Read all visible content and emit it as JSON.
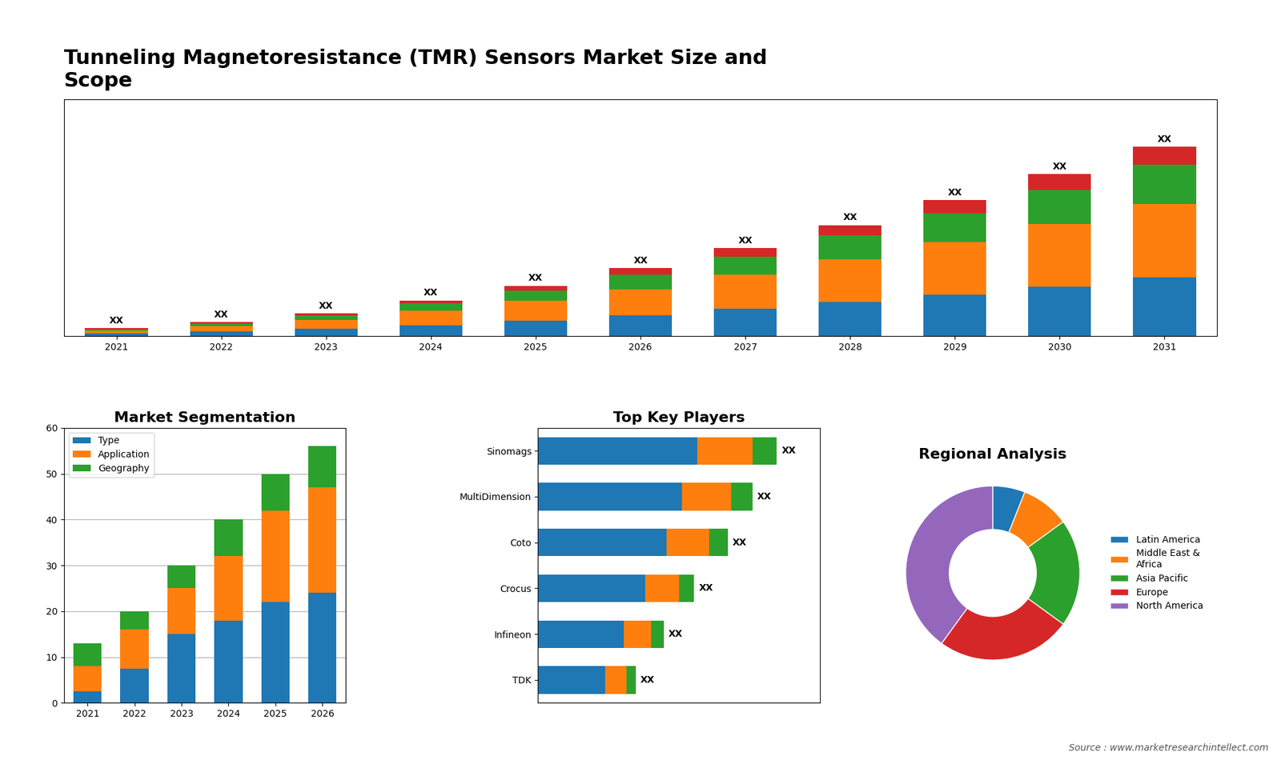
{
  "chart_data": [
    {
      "type": "bar",
      "title": "Tunneling Magnetoresistance (TMR) Sensors Market Size and\nScope",
      "stacked": true,
      "tick_labels": "x",
      "categories": [
        "2021",
        "2022",
        "2023",
        "2024",
        "2025",
        "2026",
        "2027",
        "2028",
        "2029",
        "2030",
        "2031"
      ],
      "series": [
        {
          "values": [
            1.0,
            1.8,
            2.8,
            4.2,
            6.0,
            8.0,
            10.5,
            13.0,
            16.0,
            19.0,
            22.5
          ]
        },
        {
          "values": [
            1.2,
            2.2,
            3.5,
            5.5,
            7.5,
            10.0,
            13.0,
            16.5,
            20.0,
            24.0,
            28.0
          ]
        },
        {
          "values": [
            0.5,
            1.0,
            1.7,
            2.8,
            4.0,
            5.5,
            7.0,
            9.0,
            11.0,
            13.0,
            15.0
          ]
        },
        {
          "values": [
            0.3,
            0.5,
            0.8,
            1.2,
            1.8,
            2.5,
            3.2,
            4.0,
            5.0,
            6.0,
            7.0
          ]
        }
      ],
      "ylim": [
        0,
        90.625
      ],
      "yticks": [],
      "annotations": [
        "XX",
        "XX",
        "XX",
        "XX",
        "XX",
        "XX",
        "XX",
        "XX",
        "XX",
        "XX",
        "XX"
      ]
    },
    {
      "type": "bar",
      "title": "Market Segmentation",
      "stacked": true,
      "categories": [
        "2021",
        "2022",
        "2023",
        "2024",
        "2025",
        "2026"
      ],
      "series": [
        {
          "name": "Type",
          "values": [
            2.5,
            7.5,
            15.0,
            18.0,
            22.0,
            24.0
          ]
        },
        {
          "name": "Application",
          "values": [
            5.5,
            8.5,
            10.0,
            14.0,
            20.0,
            23.0
          ]
        },
        {
          "name": "Geography",
          "values": [
            5.0,
            4.0,
            5.0,
            8.0,
            8.0,
            9.0
          ]
        }
      ],
      "ylim": [
        0,
        60
      ],
      "yticks": [
        0,
        10,
        20,
        30,
        40,
        50,
        60
      ],
      "grid": true,
      "legend": "upper left"
    },
    {
      "type": "bar",
      "title": "Top Key Players",
      "stacked": true,
      "orientation": "horizontal",
      "tick_labels": "y",
      "categories": [
        "Sinomags",
        "MultiDimension",
        "Coto",
        "Crocus",
        "Infineon",
        "TDK"
      ],
      "series": [
        {
          "values": [
            52,
            47,
            42,
            35,
            28,
            22
          ]
        },
        {
          "values": [
            18,
            16,
            14,
            11,
            9,
            7
          ]
        },
        {
          "values": [
            8,
            7,
            6,
            5,
            4,
            3
          ]
        }
      ],
      "xlim": [
        0,
        92.04
      ],
      "xticks": [],
      "annotations": [
        "XX",
        "XX",
        "XX",
        "XX",
        "XX",
        "XX"
      ]
    },
    {
      "type": "pie",
      "title": "Regional Analysis",
      "categories": [
        "Latin America",
        "Middle East &\nAfrica",
        "Asia Pacific",
        "Europe",
        "North America"
      ],
      "values": [
        6,
        9,
        20,
        25,
        40
      ],
      "legend": "center left",
      "annotations": [
        "Source : www.marketresearchintellect.com"
      ]
    }
  ]
}
